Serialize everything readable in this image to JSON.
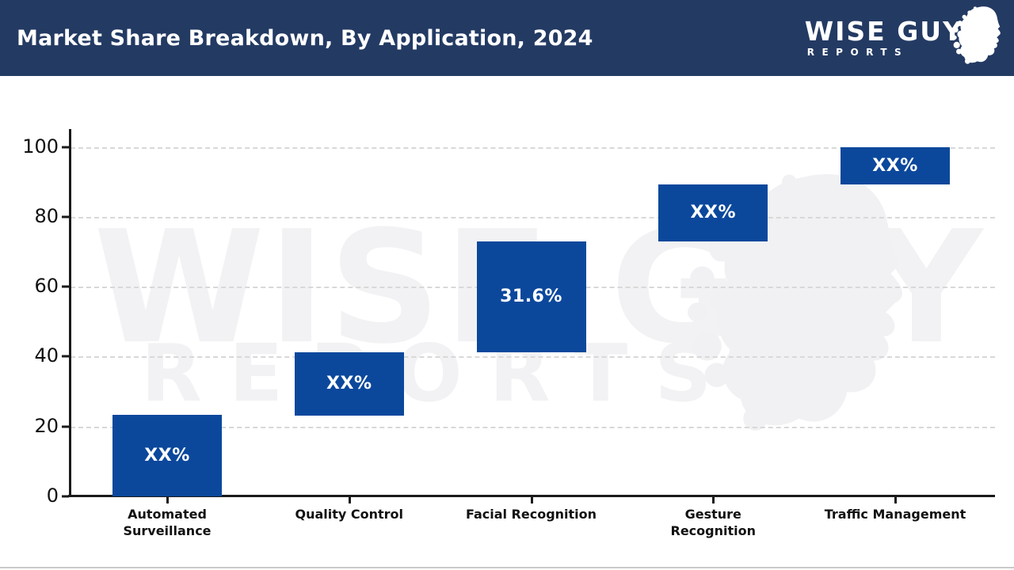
{
  "header": {
    "title": "Market Share Breakdown, By Application, 2024",
    "logo": {
      "line1": "WISE GUY",
      "line2": "REPORTS"
    },
    "bg_color": "#233a63"
  },
  "watermark": {
    "line1": "WISE GUY",
    "line2": "REPORTS"
  },
  "chart_data": {
    "type": "bar",
    "subtype": "waterfall",
    "title": "Market Share Breakdown, By Application, 2024",
    "xlabel": "",
    "ylabel": "",
    "ylim": [
      0,
      105
    ],
    "y_ticks": [
      0,
      20,
      40,
      60,
      80,
      100
    ],
    "grid": "dashed-horizontal",
    "legend": "none",
    "bar_color": "#0b489c",
    "label_color": "#ffffff",
    "categories": [
      "Automated Surveillance",
      "Quality Control",
      "Facial Recognition",
      "Gesture Recognition",
      "Traffic Management"
    ],
    "category_lines": [
      [
        "Automated",
        "Surveillance"
      ],
      [
        "Quality Control"
      ],
      [
        "Facial Recognition"
      ],
      [
        "Gesture",
        "Recognition"
      ],
      [
        "Traffic Management"
      ]
    ],
    "segments": [
      {
        "category": "Automated Surveillance",
        "start": 0,
        "end": 23.3,
        "value": 23.3,
        "label": "XX%"
      },
      {
        "category": "Quality Control",
        "start": 23.2,
        "end": 41.2,
        "value": 18.0,
        "label": "XX%"
      },
      {
        "category": "Facial Recognition",
        "start": 41.3,
        "end": 72.9,
        "value": 31.6,
        "label": "31.6%"
      },
      {
        "category": "Gesture Recognition",
        "start": 73.0,
        "end": 89.3,
        "value": 16.3,
        "label": "XX%"
      },
      {
        "category": "Traffic Management",
        "start": 89.3,
        "end": 100.0,
        "value": 10.7,
        "label": "XX%"
      }
    ]
  }
}
